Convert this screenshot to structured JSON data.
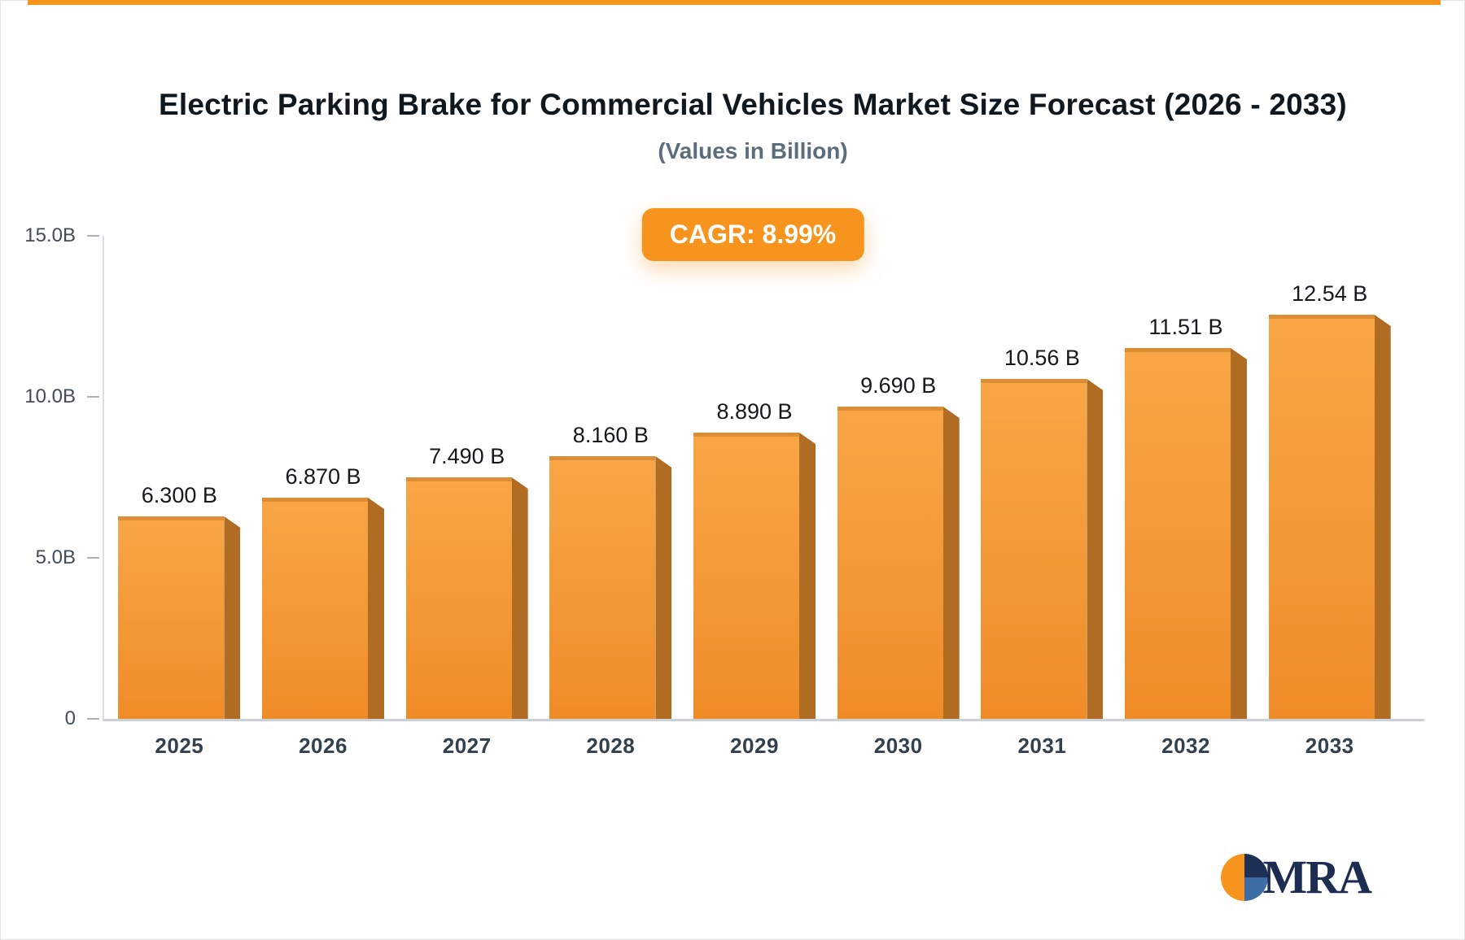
{
  "chart_data": {
    "type": "bar",
    "title": "Electric Parking Brake for Commercial Vehicles Market Size Forecast (2026 - 2033)",
    "subtitle": "(Values in Billion)",
    "annotation": "CAGR: 8.99%",
    "categories": [
      "2025",
      "2026",
      "2027",
      "2028",
      "2029",
      "2030",
      "2031",
      "2032",
      "2033"
    ],
    "values": [
      6.3,
      6.87,
      7.49,
      8.16,
      8.89,
      9.69,
      10.56,
      11.51,
      12.54
    ],
    "value_labels": [
      "6.300 B",
      "6.870 B",
      "7.490 B",
      "8.160 B",
      "8.890 B",
      "9.690 B",
      "10.56 B",
      "11.51 B",
      "12.54 B"
    ],
    "xlabel": "",
    "ylabel": "",
    "ylim": [
      0,
      15
    ],
    "yticks": [
      {
        "label": "15.0B",
        "value": 15
      },
      {
        "label": "10.0B",
        "value": 10
      },
      {
        "label": "5.0B",
        "value": 5
      },
      {
        "label": "0",
        "value": 0
      }
    ],
    "grid": false,
    "legend": false
  },
  "colors": {
    "accent": "#f7941e",
    "bar_gradient_top": "#f9a647",
    "bar_gradient_bottom": "#ef8c28",
    "bar_side": "#b06c22",
    "axis_line": "#ccd1d7",
    "label_text": "#15181c"
  },
  "logo": {
    "text": "MRA",
    "icon": "pie-circle-icon",
    "icon_colors": [
      "#f7941e",
      "#1e3055",
      "#3c6ea5"
    ]
  }
}
